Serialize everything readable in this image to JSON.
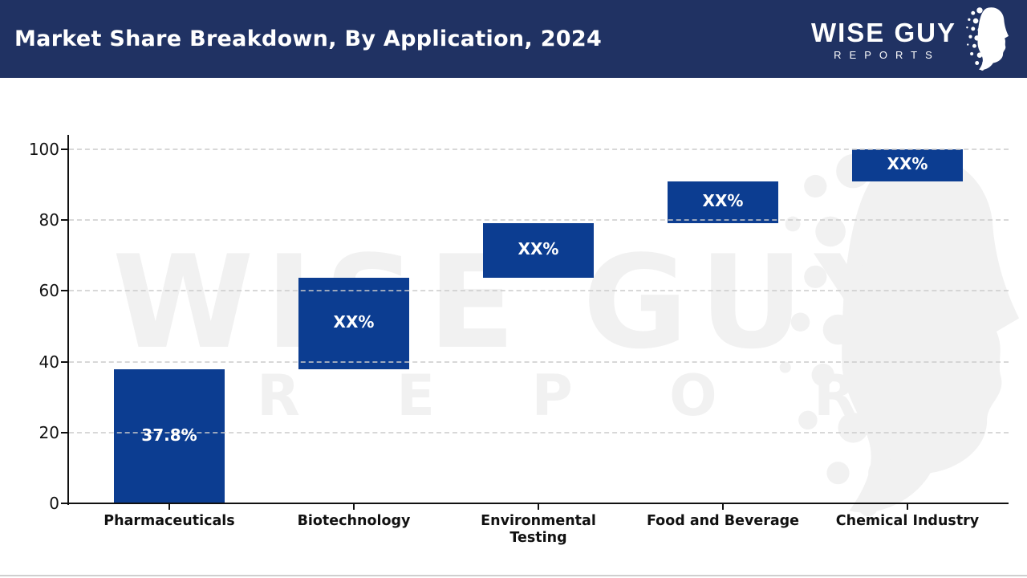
{
  "header": {
    "title": "Market Share Breakdown, By Application, 2024",
    "bg_color": "#203263",
    "logo": {
      "line1": "WISE GUY",
      "line2": "REPORTS"
    }
  },
  "watermark": {
    "line1": "WISE GUY",
    "line2": "R E P O R T S"
  },
  "chart_data": {
    "type": "bar",
    "subtype": "waterfall",
    "title": "Market Share Breakdown, By Application, 2024",
    "categories": [
      "Pharmaceuticals",
      "Biotechnology",
      "Environmental Testing",
      "Food and Beverage",
      "Chemical Industry"
    ],
    "segments": [
      {
        "category": "Pharmaceuticals",
        "axis_label": "Pharmaceuticals",
        "start": 0,
        "end": 37.8,
        "value_label": "37.8%"
      },
      {
        "category": "Biotechnology",
        "axis_label": "Biotechnology",
        "start": 37.8,
        "end": 63.7,
        "value_label": "XX%"
      },
      {
        "category": "Environmental Testing",
        "axis_label": "Environmental\nTesting",
        "start": 63.7,
        "end": 79.1,
        "value_label": "XX%"
      },
      {
        "category": "Food and Beverage",
        "axis_label": "Food and Beverage",
        "start": 79.1,
        "end": 90.9,
        "value_label": "XX%"
      },
      {
        "category": "Chemical Industry",
        "axis_label": "Chemical Industry",
        "start": 90.9,
        "end": 100,
        "value_label": "XX%"
      }
    ],
    "y_ticks": [
      0,
      20,
      40,
      60,
      80,
      100
    ],
    "ylim": [
      0,
      104
    ],
    "xlabel": "",
    "ylabel": "",
    "bar_color": "#0c3d91",
    "value_label_color": "#ffffff",
    "grid": "horizontal-dashed",
    "legend": "none"
  }
}
